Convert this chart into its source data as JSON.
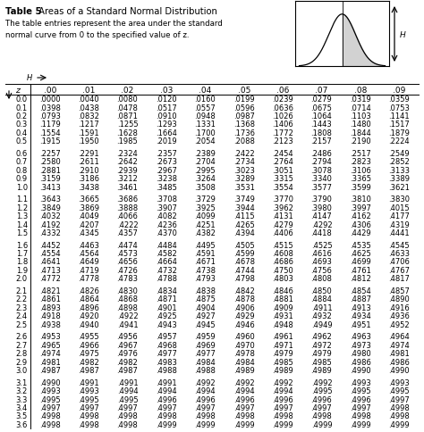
{
  "title_bold": "Table 5",
  "title_rest": " Areas of a Standard Normal Distribution",
  "subtitle": "The table entries represent the area under the standard\nnormal curve from 0 to the specified value of z.",
  "col_headers": [
    ".00",
    ".01",
    ".02",
    ".03",
    ".04",
    ".05",
    ".06",
    ".07",
    ".08",
    ".09"
  ],
  "z_values": [
    "0.0",
    "0.1",
    "0.2",
    "0.3",
    "0.4",
    "0.5",
    "0.6",
    "0.7",
    "0.8",
    "0.9",
    "1.0",
    "1.1",
    "1.2",
    "1.3",
    "1.4",
    "1.5",
    "1.6",
    "1.7",
    "1.8",
    "1.9",
    "2.0",
    "2.1",
    "2.2",
    "2.3",
    "2.4",
    "2.5",
    "2.6",
    "2.7",
    "2.8",
    "2.9",
    "3.0",
    "3.1",
    "3.2",
    "3.3",
    "3.4",
    "3.5",
    "3.6"
  ],
  "table_data": [
    [
      ".0000",
      ".0040",
      ".0080",
      ".0120",
      ".0160",
      ".0199",
      ".0239",
      ".0279",
      ".0319",
      ".0359"
    ],
    [
      ".0398",
      ".0438",
      ".0478",
      ".0517",
      ".0557",
      ".0596",
      ".0636",
      ".0675",
      ".0714",
      ".0753"
    ],
    [
      ".0793",
      ".0832",
      ".0871",
      ".0910",
      ".0948",
      ".0987",
      ".1026",
      ".1064",
      ".1103",
      ".1141"
    ],
    [
      ".1179",
      ".1217",
      ".1255",
      ".1293",
      ".1331",
      ".1368",
      ".1406",
      ".1443",
      ".1480",
      ".1517"
    ],
    [
      ".1554",
      ".1591",
      ".1628",
      ".1664",
      ".1700",
      ".1736",
      ".1772",
      ".1808",
      ".1844",
      ".1879"
    ],
    [
      ".1915",
      ".1950",
      ".1985",
      ".2019",
      ".2054",
      ".2088",
      ".2123",
      ".2157",
      ".2190",
      ".2224"
    ],
    [
      ".2257",
      ".2291",
      ".2324",
      ".2357",
      ".2389",
      ".2422",
      ".2454",
      ".2486",
      ".2517",
      ".2549"
    ],
    [
      ".2580",
      ".2611",
      ".2642",
      ".2673",
      ".2704",
      ".2734",
      ".2764",
      ".2794",
      ".2823",
      ".2852"
    ],
    [
      ".2881",
      ".2910",
      ".2939",
      ".2967",
      ".2995",
      ".3023",
      ".3051",
      ".3078",
      ".3106",
      ".3133"
    ],
    [
      ".3159",
      ".3186",
      ".3212",
      ".3238",
      ".3264",
      ".3289",
      ".3315",
      ".3340",
      ".3365",
      ".3389"
    ],
    [
      ".3413",
      ".3438",
      ".3461",
      ".3485",
      ".3508",
      ".3531",
      ".3554",
      ".3577",
      ".3599",
      ".3621"
    ],
    [
      ".3643",
      ".3665",
      ".3686",
      ".3708",
      ".3729",
      ".3749",
      ".3770",
      ".3790",
      ".3810",
      ".3830"
    ],
    [
      ".3849",
      ".3869",
      ".3888",
      ".3907",
      ".3925",
      ".3944",
      ".3962",
      ".3980",
      ".3997",
      ".4015"
    ],
    [
      ".4032",
      ".4049",
      ".4066",
      ".4082",
      ".4099",
      ".4115",
      ".4131",
      ".4147",
      ".4162",
      ".4177"
    ],
    [
      ".4192",
      ".4207",
      ".4222",
      ".4236",
      ".4251",
      ".4265",
      ".4279",
      ".4292",
      ".4306",
      ".4319"
    ],
    [
      ".4332",
      ".4345",
      ".4357",
      ".4370",
      ".4382",
      ".4394",
      ".4406",
      ".4418",
      ".4429",
      ".4441"
    ],
    [
      ".4452",
      ".4463",
      ".4474",
      ".4484",
      ".4495",
      ".4505",
      ".4515",
      ".4525",
      ".4535",
      ".4545"
    ],
    [
      ".4554",
      ".4564",
      ".4573",
      ".4582",
      ".4591",
      ".4599",
      ".4608",
      ".4616",
      ".4625",
      ".4633"
    ],
    [
      ".4641",
      ".4649",
      ".4656",
      ".4664",
      ".4671",
      ".4678",
      ".4686",
      ".4693",
      ".4699",
      ".4706"
    ],
    [
      ".4713",
      ".4719",
      ".4726",
      ".4732",
      ".4738",
      ".4744",
      ".4750",
      ".4756",
      ".4761",
      ".4767"
    ],
    [
      ".4772",
      ".4778",
      ".4783",
      ".4788",
      ".4793",
      ".4798",
      ".4803",
      ".4808",
      ".4812",
      ".4817"
    ],
    [
      ".4821",
      ".4826",
      ".4830",
      ".4834",
      ".4838",
      ".4842",
      ".4846",
      ".4850",
      ".4854",
      ".4857"
    ],
    [
      ".4861",
      ".4864",
      ".4868",
      ".4871",
      ".4875",
      ".4878",
      ".4881",
      ".4884",
      ".4887",
      ".4890"
    ],
    [
      ".4893",
      ".4896",
      ".4898",
      ".4901",
      ".4904",
      ".4906",
      ".4909",
      ".4911",
      ".4913",
      ".4916"
    ],
    [
      ".4918",
      ".4920",
      ".4922",
      ".4925",
      ".4927",
      ".4929",
      ".4931",
      ".4932",
      ".4934",
      ".4936"
    ],
    [
      ".4938",
      ".4940",
      ".4941",
      ".4943",
      ".4945",
      ".4946",
      ".4948",
      ".4949",
      ".4951",
      ".4952"
    ],
    [
      ".4953",
      ".4955",
      ".4956",
      ".4957",
      ".4959",
      ".4960",
      ".4961",
      ".4962",
      ".4963",
      ".4964"
    ],
    [
      ".4965",
      ".4966",
      ".4967",
      ".4968",
      ".4969",
      ".4970",
      ".4971",
      ".4972",
      ".4973",
      ".4974"
    ],
    [
      ".4974",
      ".4975",
      ".4976",
      ".4977",
      ".4977",
      ".4978",
      ".4979",
      ".4979",
      ".4980",
      ".4981"
    ],
    [
      ".4981",
      ".4982",
      ".4982",
      ".4983",
      ".4984",
      ".4984",
      ".4985",
      ".4985",
      ".4986",
      ".4986"
    ],
    [
      ".4987",
      ".4987",
      ".4987",
      ".4988",
      ".4988",
      ".4989",
      ".4989",
      ".4989",
      ".4990",
      ".4990"
    ],
    [
      ".4990",
      ".4991",
      ".4991",
      ".4991",
      ".4992",
      ".4992",
      ".4992",
      ".4992",
      ".4993",
      ".4993"
    ],
    [
      ".4993",
      ".4993",
      ".4994",
      ".4994",
      ".4994",
      ".4994",
      ".4994",
      ".4995",
      ".4995",
      ".4995"
    ],
    [
      ".4995",
      ".4995",
      ".4995",
      ".4996",
      ".4996",
      ".4996",
      ".4996",
      ".4996",
      ".4996",
      ".4997"
    ],
    [
      ".4997",
      ".4997",
      ".4997",
      ".4997",
      ".4997",
      ".4997",
      ".4997",
      ".4997",
      ".4997",
      ".4998"
    ],
    [
      ".4998",
      ".4998",
      ".4998",
      ".4998",
      ".4998",
      ".4998",
      ".4998",
      ".4998",
      ".4998",
      ".4998"
    ],
    [
      ".4998",
      ".4998",
      ".4998",
      ".4999",
      ".4999",
      ".4999",
      ".4999",
      ".4999",
      ".4999",
      ".4999"
    ]
  ],
  "group_breaks": [
    6,
    11,
    16,
    21,
    26,
    31
  ],
  "bg_color": "#ffffff",
  "header_color": "#000000",
  "text_color": "#000000",
  "line_color": "#000000"
}
